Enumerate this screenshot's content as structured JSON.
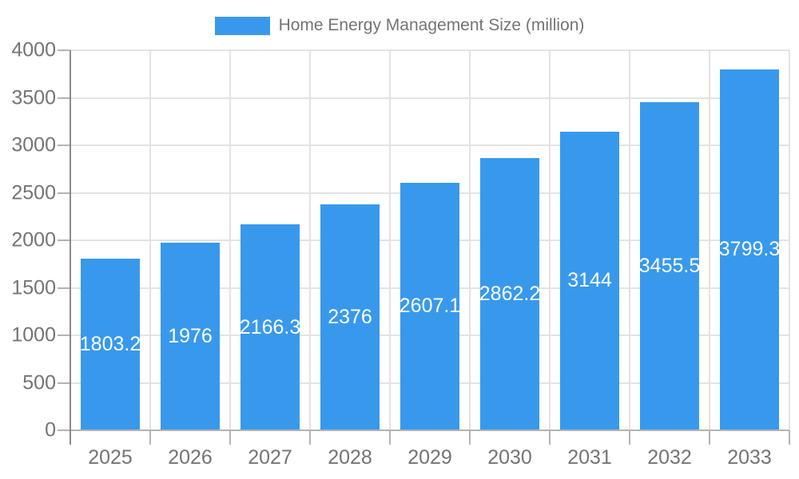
{
  "chart_data": {
    "type": "bar",
    "title": "Home Energy Management Size (million)",
    "categories": [
      "2025",
      "2026",
      "2027",
      "2028",
      "2029",
      "2030",
      "2031",
      "2032",
      "2033"
    ],
    "values": [
      1803.2,
      1976,
      2166.3,
      2376,
      2607.1,
      2862.2,
      3144,
      3455.5,
      3799.3
    ],
    "xlabel": "",
    "ylabel": "",
    "ylim": [
      0,
      4000
    ],
    "yticks": [
      0,
      500,
      1000,
      1500,
      2000,
      2500,
      3000,
      3500,
      4000
    ],
    "grid": true,
    "legend_position": "top",
    "bar_label_position": "center",
    "colors": {
      "bar": "#3899EC",
      "bar_label": "#FFFFFF",
      "axis_text": "#747474",
      "legend_text": "#747474",
      "gridline": "#E3E3E3",
      "tick": "#B3B3B3",
      "y_axis_line": "#8A8A8A",
      "x_axis_line": "#B3B3B3",
      "background": "#FFFFFF"
    }
  }
}
